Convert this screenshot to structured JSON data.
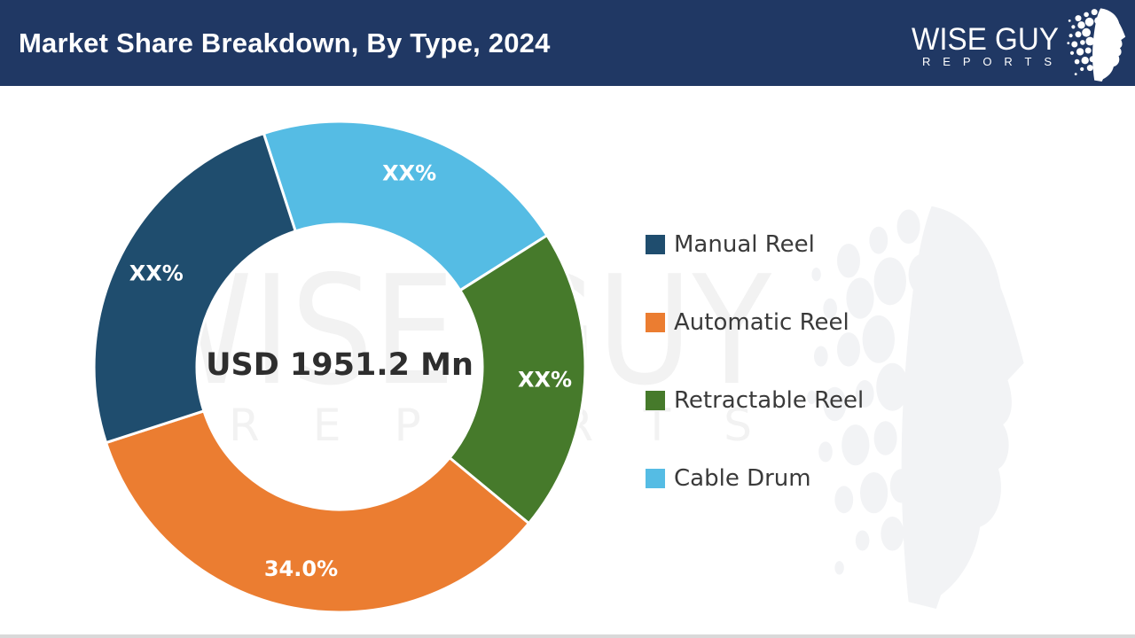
{
  "header": {
    "title": "Market Share Breakdown, By Type, 2024",
    "bg_color": "#203864",
    "logo": {
      "line1": "WISE GUY",
      "line2": "REPORTS"
    }
  },
  "watermark": {
    "line1": "WISE GUY",
    "line2": "REPORTS"
  },
  "chart_data": {
    "type": "pie",
    "subtype": "donut",
    "title": "Market Share Breakdown, By Type, 2024",
    "center_label": "USD 1951.2 Mn",
    "segments": [
      {
        "label": "Manual Reel",
        "display_pct": "XX%",
        "est_value_pct": 25,
        "color": "#1F4D6E"
      },
      {
        "label": "Automatic Reel",
        "display_pct": "34.0%",
        "est_value_pct": 34,
        "color": "#EB7D31"
      },
      {
        "label": "Retractable Reel",
        "display_pct": "XX%",
        "est_value_pct": 20,
        "color": "#467A2B"
      },
      {
        "label": "Cable Drum",
        "display_pct": "XX%",
        "est_value_pct": 21,
        "color": "#55BCE4"
      }
    ],
    "layout": {
      "legend_position": "right",
      "labels_inside_slices": true,
      "start_angle_deg": -18,
      "clockwise_draw_order": [
        3,
        2,
        1,
        0
      ],
      "hole_ratio": 0.58
    }
  }
}
